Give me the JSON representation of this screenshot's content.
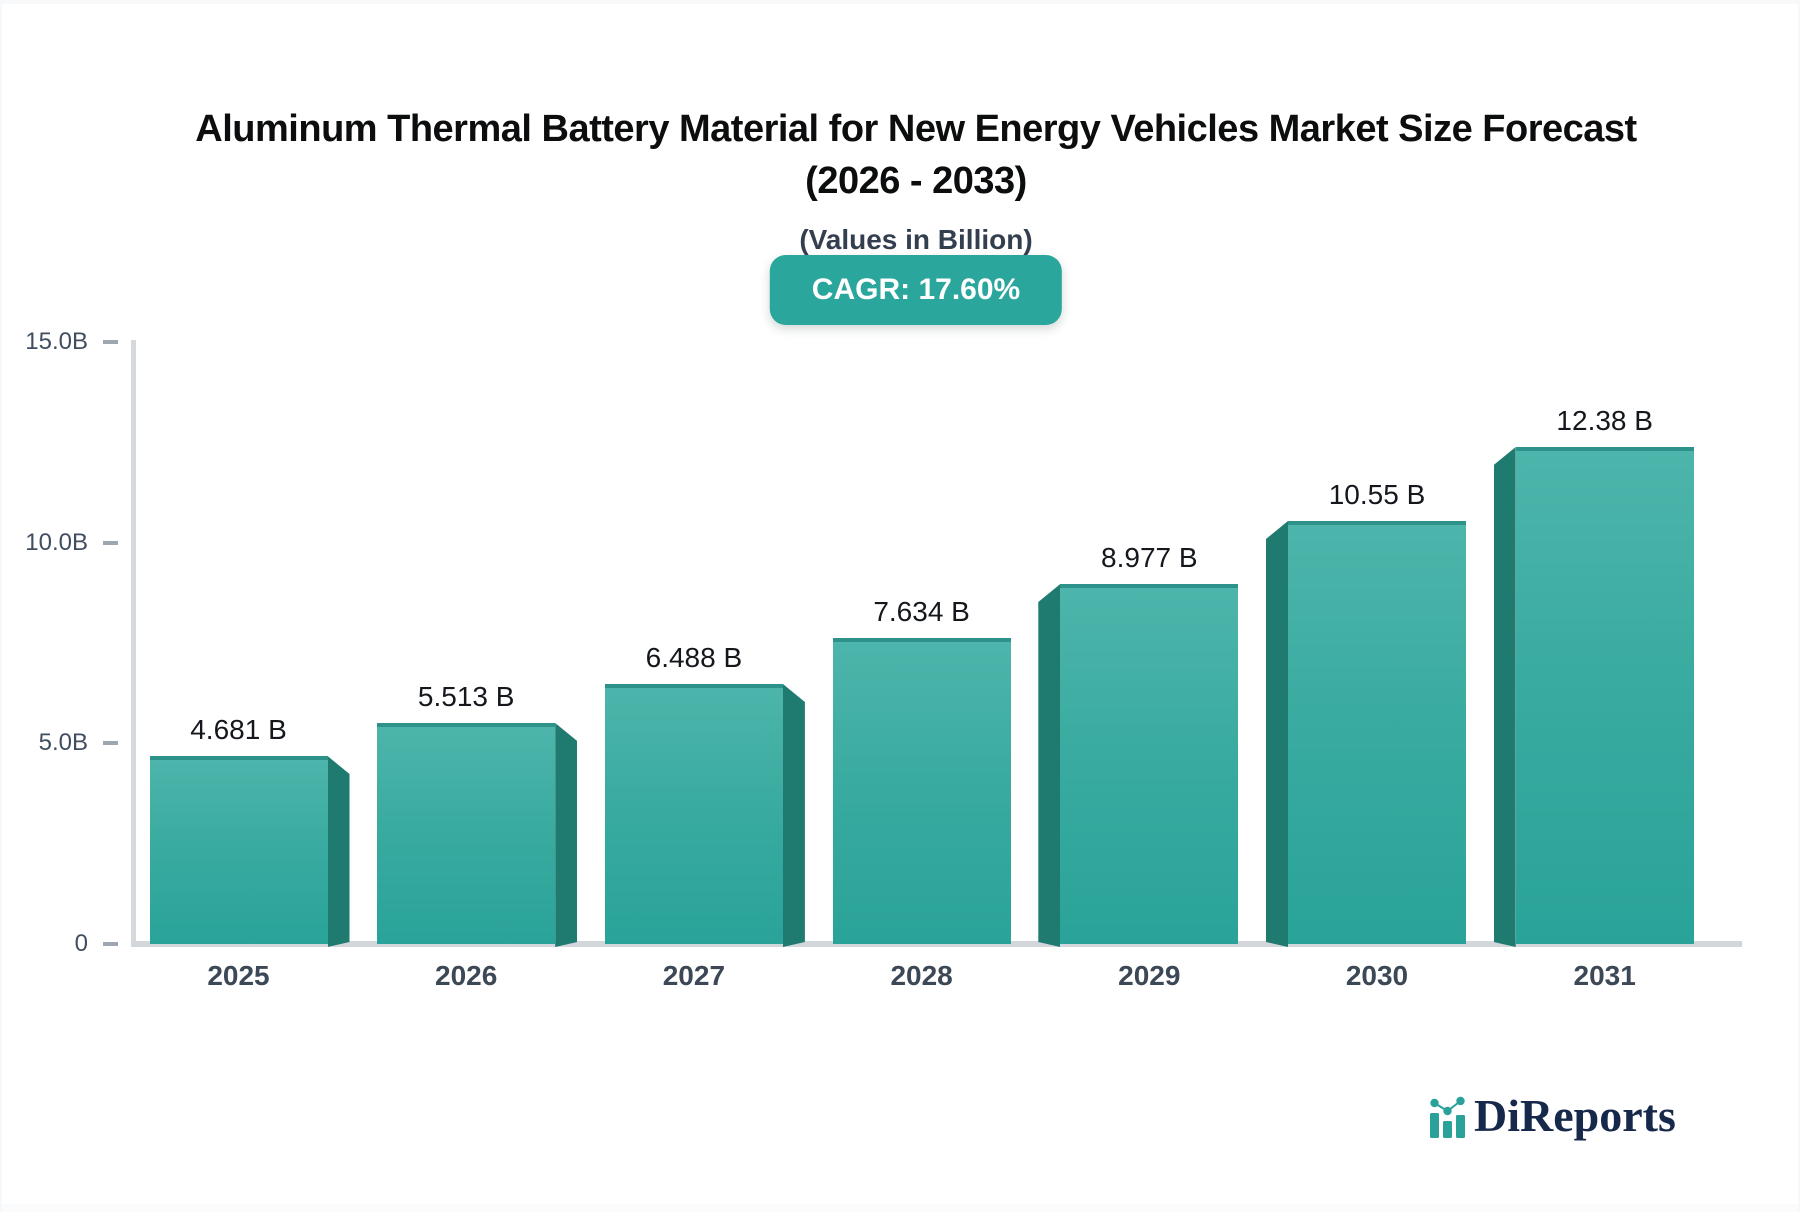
{
  "header": {
    "title_line1": "Aluminum Thermal Battery Material for New Energy Vehicles Market Size Forecast",
    "title_line2": "(2026 - 2033)",
    "subtitle": "(Values in Billion)",
    "cagr_badge": "CAGR: 17.60%"
  },
  "chart_data": {
    "type": "bar",
    "title": "Aluminum Thermal Battery Material for New Energy Vehicles Market Size Forecast (2026 - 2033)",
    "subtitle": "(Values in Billion)",
    "cagr": "17.60%",
    "categories": [
      "2025",
      "2026",
      "2027",
      "2028",
      "2029",
      "2030",
      "2031"
    ],
    "values": [
      4.681,
      5.513,
      6.488,
      7.634,
      8.977,
      10.55,
      12.38
    ],
    "value_labels": [
      "4.681 B",
      "5.513 B",
      "6.488 B",
      "7.634 B",
      "8.977 B",
      "10.55 B",
      "12.38 B"
    ],
    "xlabel": "",
    "ylabel": "",
    "ylim": [
      0,
      15
    ],
    "yticks": [
      {
        "label": "15.0B",
        "value": 15
      },
      {
        "label": "10.0B",
        "value": 10
      },
      {
        "label": "5.0B",
        "value": 5
      },
      {
        "label": "0",
        "value": 0
      }
    ],
    "grid": false,
    "legend": false,
    "bar_style": "3d-extruded-toward-center"
  },
  "colors": {
    "bar_face_top": "#4db5ab",
    "bar_face_bottom": "#29a399",
    "bar_side_dark": "#1f7a70",
    "bar_top_edge": "#2d938a",
    "badge_background": "#2aa69c",
    "badge_text": "#ffffff",
    "axis_line": "#d4d7db",
    "tick_label": "#414e60",
    "year_label": "#3c4856",
    "value_label": "#14181d",
    "title_text": "#0c0d0e",
    "subtitle_text": "#333e4f",
    "logo_navy": "#16294a",
    "logo_teal": "#2aa199"
  },
  "logo": {
    "icon": "mini-bar-chart-icon",
    "text": "DiReports"
  }
}
